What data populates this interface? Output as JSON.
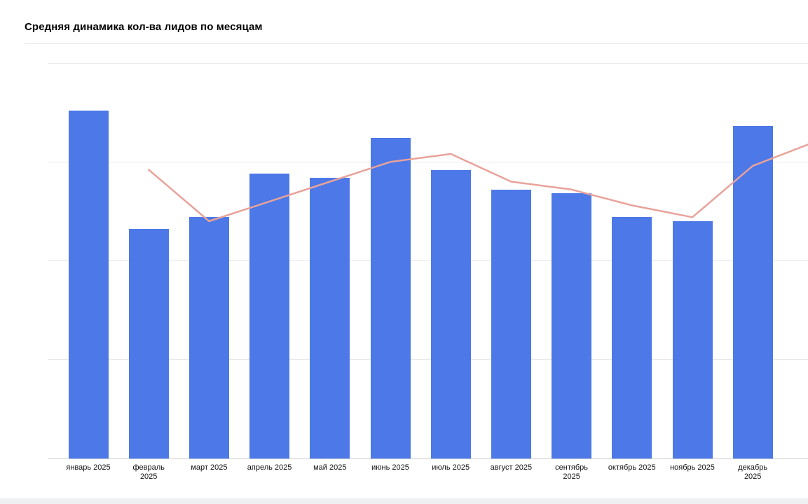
{
  "page": {
    "background_color": "#ffffff",
    "footer_strip_color": "#eef0f2"
  },
  "chart_data": {
    "type": "bar",
    "title": "Средняя динамика кол-ва лидов по месяцам",
    "categories": [
      "январь 2025",
      "февраль 2025",
      "март 2025",
      "апрель 2025",
      "май 2025",
      "июнь 2025",
      "июль 2025",
      "август 2025",
      "сентябрь 2025",
      "октябрь 2025",
      "ноябрь 2025",
      "декабрь 2025"
    ],
    "tick_labels": [
      "январь 2025",
      "февраль\n2025",
      "март 2025",
      "апрель 2025",
      "май 2025",
      "июнь 2025",
      "июль 2025",
      "август 2025",
      "сентябрь\n2025",
      "октябрь 2025",
      "ноябрь 2025",
      "декабрь\n2025"
    ],
    "bar_series": {
      "color": "#4c78e8",
      "values": [
        88,
        58,
        61,
        72,
        71,
        81,
        73,
        68,
        67,
        61,
        60,
        84
      ]
    },
    "line_series": {
      "color": "#e8a29a",
      "values": [
        null,
        73,
        60,
        65,
        70,
        75,
        77,
        70,
        68,
        64,
        61,
        74
      ],
      "edge_value": 80
    },
    "ylim": [
      0,
      100
    ],
    "y_tick_labels": [],
    "gridline_count": 5,
    "legend": "none",
    "grid": "horizontal"
  }
}
